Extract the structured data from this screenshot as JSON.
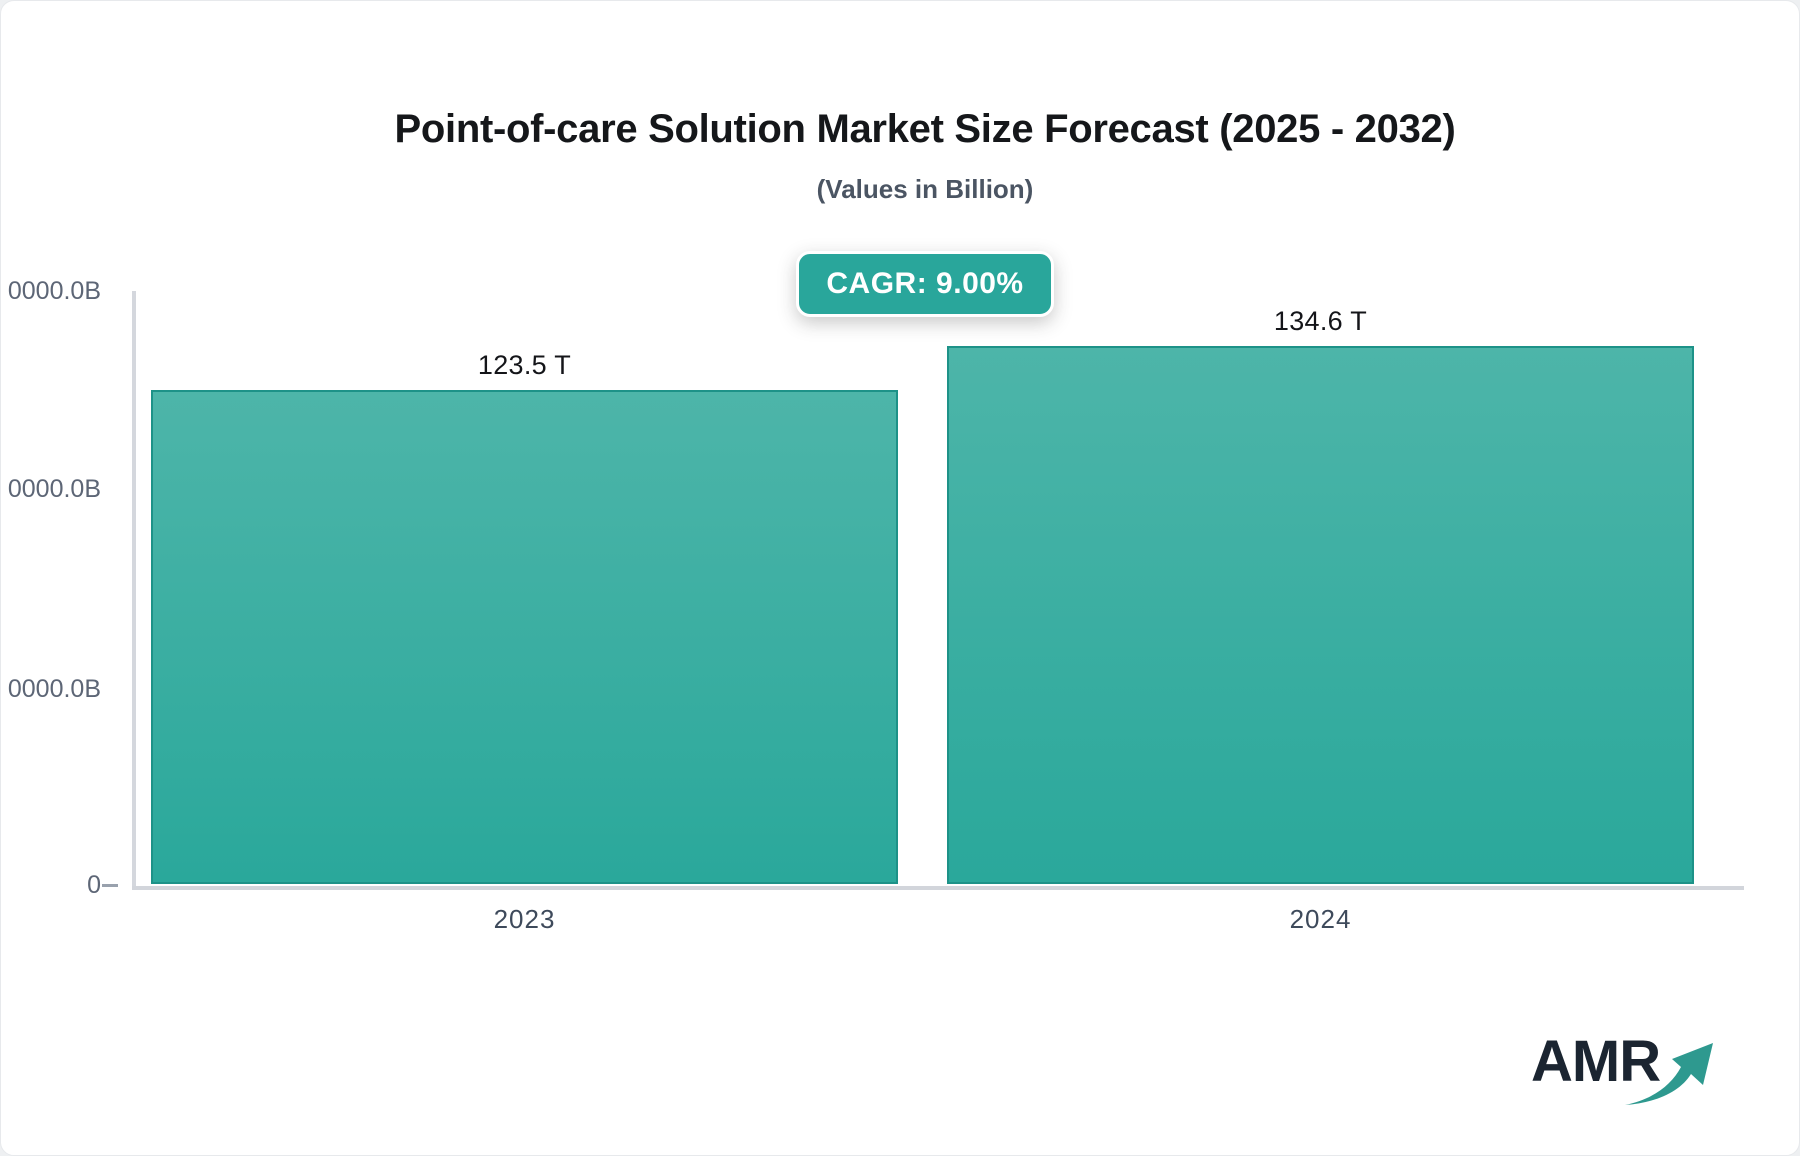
{
  "header": {
    "title": "Point-of-care Solution Market Size Forecast (2025 - 2032)",
    "subtitle": "(Values in Billion)"
  },
  "badge": {
    "label": "CAGR: 9.00%",
    "background": "#29a69b"
  },
  "chart_data": {
    "type": "bar",
    "title": "Point-of-care Solution Market Size Forecast (2025 - 2032)",
    "subtitle": "(Values in Billion)",
    "cagr": "9.00%",
    "categories": [
      "2023",
      "2024"
    ],
    "values": [
      123.5,
      134.6
    ],
    "value_labels": [
      "123.5 T",
      "134.6 T"
    ],
    "y_axis": {
      "tick_labels_top_to_bottom": [
        "0000.0B",
        "0000.0B",
        "0000.0B",
        "0"
      ],
      "min": 0
    },
    "ylim": [
      0,
      149
    ],
    "grid": false,
    "legend_position": "none",
    "colors": {
      "bar_top": "#4db5a9",
      "bar_bottom": "#2aa89b",
      "bar_border": "#1d9288",
      "axis_line": "#d4d7dd"
    }
  },
  "footer": {
    "logo_text": "AMR",
    "logo_arrow_color": "#2e998f"
  }
}
